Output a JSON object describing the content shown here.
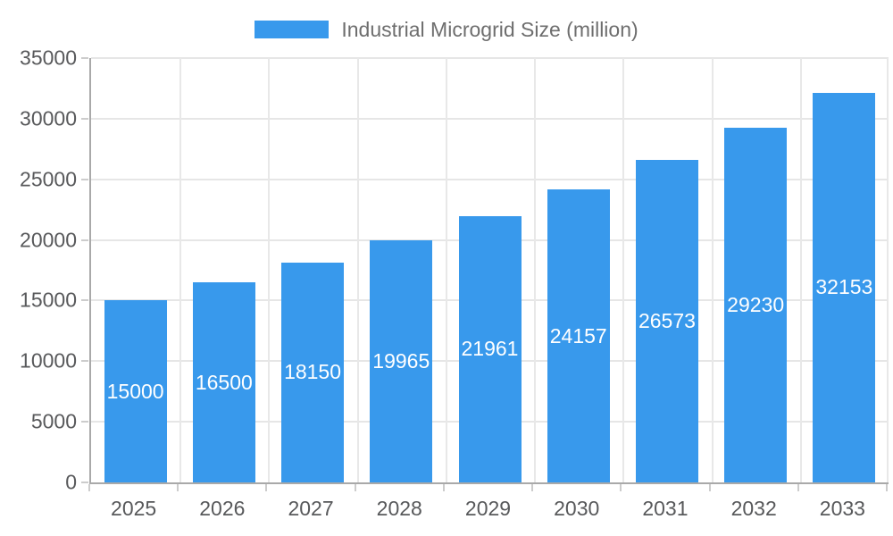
{
  "legend": {
    "label": "Industrial Microgrid Size (million)"
  },
  "colors": {
    "bar": "#3899EC",
    "grid": "#E6E6E6",
    "axis": "#A9A9A9",
    "axis_label_text": "#58595B",
    "legend_text": "#6E6E6E",
    "value_label_text": "#FFFFFF"
  },
  "chart_data": {
    "type": "bar",
    "title": "Industrial Microgrid Size (million)",
    "categories": [
      "2025",
      "2026",
      "2027",
      "2028",
      "2029",
      "2030",
      "2031",
      "2032",
      "2033"
    ],
    "values": [
      15000,
      16500,
      18150,
      19965,
      21961,
      24157,
      26573,
      29230,
      32153
    ],
    "value_labels": [
      "15000",
      "16500",
      "18150",
      "19965",
      "21961",
      "24157",
      "26573",
      "29230",
      "32153"
    ],
    "xlabel": "",
    "ylabel": "",
    "ylim": [
      0,
      35000
    ],
    "yticks": [
      0,
      5000,
      10000,
      15000,
      20000,
      25000,
      30000,
      35000
    ],
    "grid": "on",
    "legend_position": "top-center",
    "value_label_position": "inside-center",
    "bar_color": "#3899EC"
  }
}
